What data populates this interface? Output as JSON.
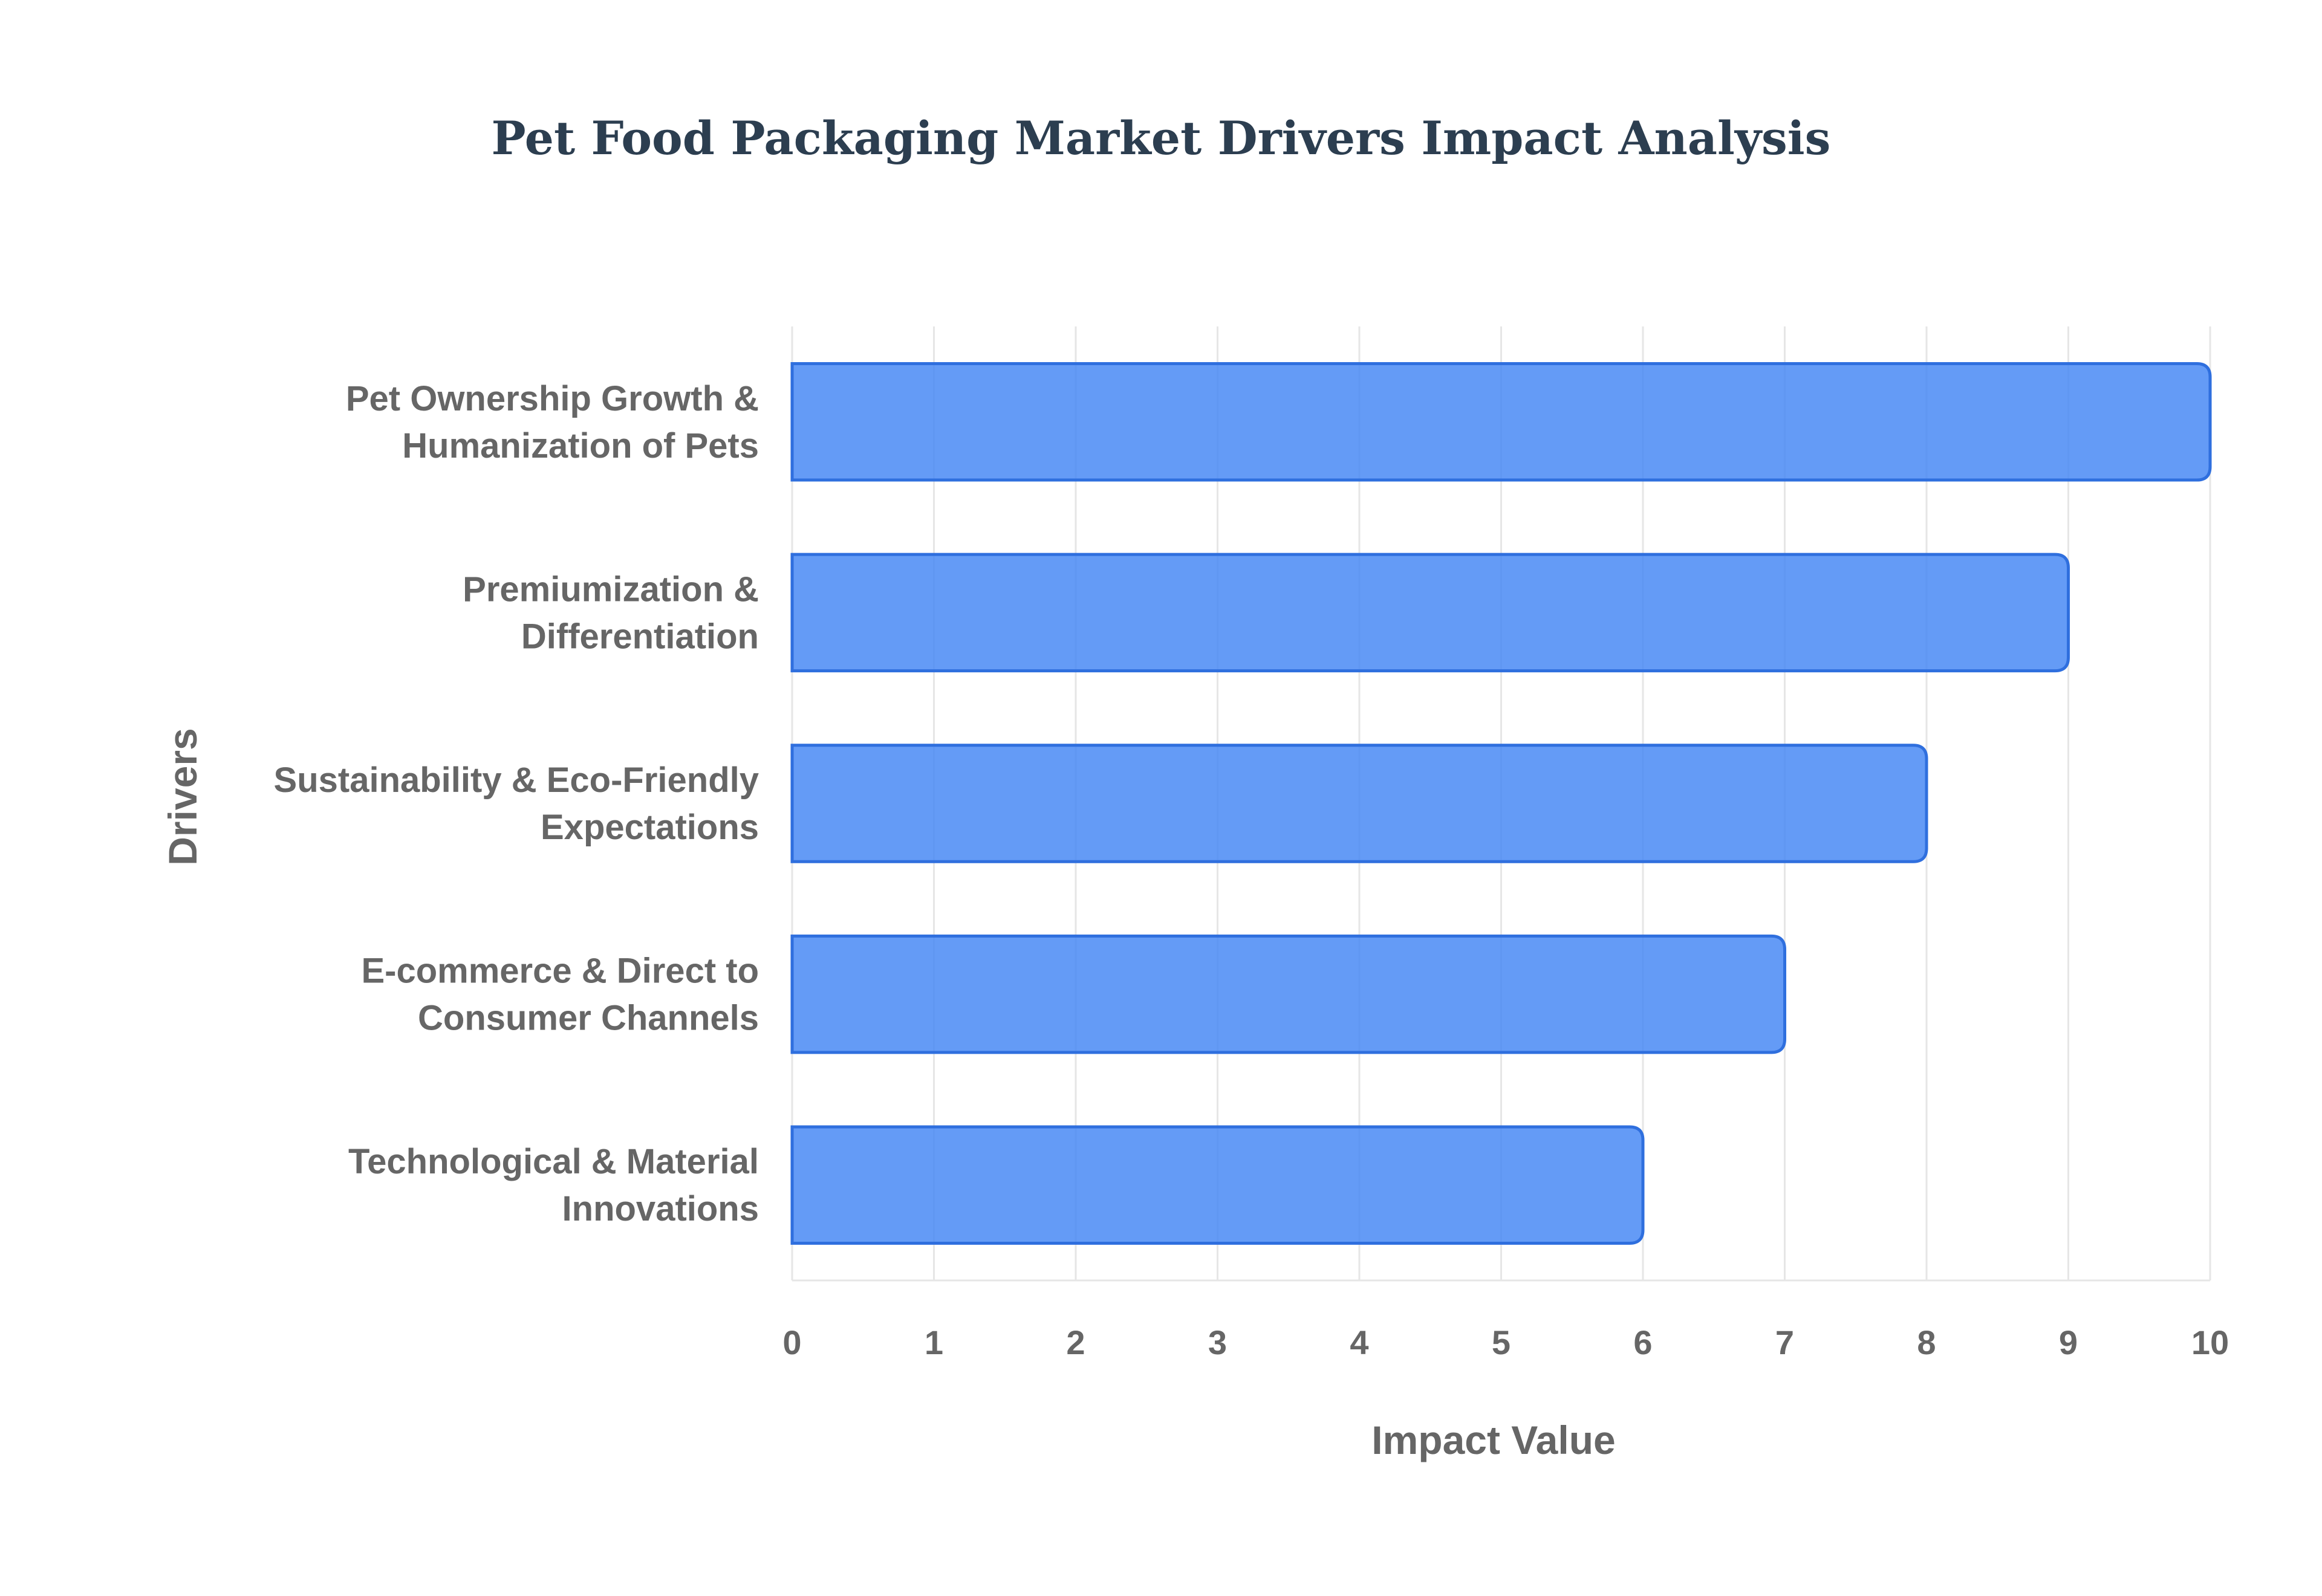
{
  "chart_data": {
    "type": "bar",
    "orientation": "horizontal",
    "title": "Pet Food Packaging Market Drivers Impact Analysis",
    "xlabel": "Impact Value",
    "ylabel": "Drivers",
    "xlim": [
      0,
      10
    ],
    "x_ticks": [
      "0",
      "1",
      "2",
      "3",
      "4",
      "5",
      "6",
      "7",
      "8",
      "9",
      "10"
    ],
    "grid": true,
    "legend": "none",
    "bar_color": "#4285f4",
    "bar_edge_color": "#2f6fde",
    "categories": [
      [
        "Pet Ownership Growth &",
        "Humanization of Pets"
      ],
      [
        "Premiumization &",
        "Differentiation"
      ],
      [
        "Sustainability & Eco-Friendly",
        "Expectations"
      ],
      [
        "E-commerce & Direct to",
        "Consumer Channels"
      ],
      [
        "Technological & Material",
        "Innovations"
      ]
    ],
    "values": [
      10,
      9,
      8,
      7,
      6
    ]
  }
}
